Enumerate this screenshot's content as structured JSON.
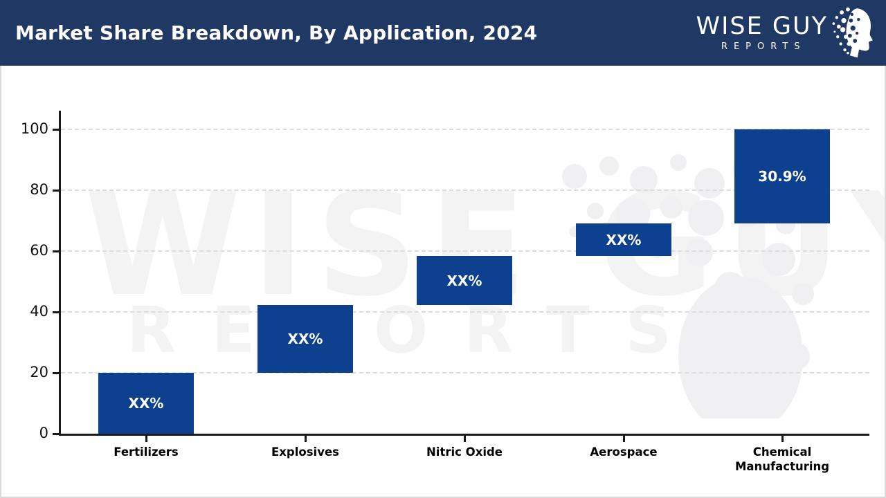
{
  "header": {
    "title": "Market Share Breakdown, By Application, 2024",
    "logo": {
      "brand_line1": "WISE GUY",
      "brand_line2": "REPORTS"
    }
  },
  "watermark": {
    "line1": "WISE GUY",
    "line2": "REPORTS"
  },
  "colors": {
    "header_bg": "#1f3864",
    "title_text": "#ffffff",
    "bar_fill": "#0d408f",
    "bar_label_text": "#ffffff",
    "grid": "#dcdcdc",
    "axis": "#1a1a1a",
    "tick_label": "#111111",
    "watermark": "#f3f3f4",
    "page_border": "#d9d9d9"
  },
  "icons": {
    "logo_head": "dotted-head-profile-icon",
    "watermark_head": "dotted-head-profile-watermark-icon"
  },
  "chart_data": {
    "type": "bar",
    "variant": "waterfall",
    "title": "Market Share Breakdown, By Application, 2024",
    "xlabel": "",
    "ylabel": "",
    "ylim": [
      0,
      100
    ],
    "yticks": [
      0,
      20,
      40,
      60,
      80,
      100
    ],
    "grid": true,
    "grid_style": "dashed",
    "legend": "none",
    "bar_color": "#0d408f",
    "categories": [
      "Fertilizers",
      "Explosives",
      "Nitric Oxide",
      "Aerospace",
      "Chemical Manufacturing"
    ],
    "segments": [
      {
        "category": "Fertilizers",
        "start": 0,
        "end": 20,
        "value_label": "XX%"
      },
      {
        "category": "Explosives",
        "start": 20,
        "end": 42.2,
        "value_label": "XX%"
      },
      {
        "category": "Nitric Oxide",
        "start": 42.2,
        "end": 58.3,
        "value_label": "XX%"
      },
      {
        "category": "Aerospace",
        "start": 58.3,
        "end": 69.1,
        "value_label": "XX%"
      },
      {
        "category": "Chemical Manufacturing",
        "start": 69.1,
        "end": 100,
        "value_label": "30.9%"
      }
    ]
  }
}
